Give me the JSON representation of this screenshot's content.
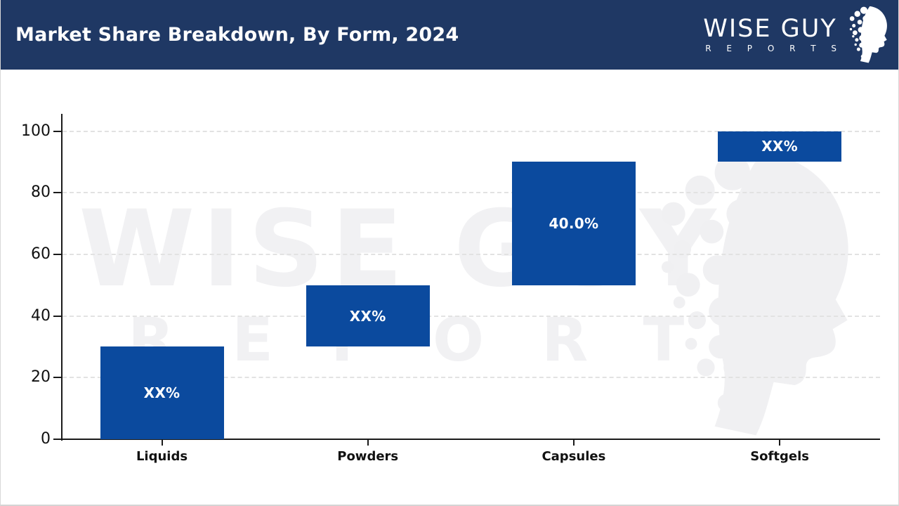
{
  "header": {
    "title": "Market Share Breakdown, By Form, 2024",
    "logo": {
      "line1": "WISE GUY",
      "line2": "R E P O R T S"
    }
  },
  "watermark": {
    "line1": "WISE GUY",
    "line2": "REPORTS"
  },
  "colors": {
    "header_bg": "#1F3864",
    "bar": "#0B4A9E",
    "grid": "#E2E2E2",
    "axis": "#1A1A1A",
    "watermark": "#F1F1F3"
  },
  "chart_data": {
    "type": "bar",
    "subtype": "waterfall",
    "title": "Market Share Breakdown, By Form, 2024",
    "categories": [
      "Liquids",
      "Powders",
      "Capsules",
      "Softgels"
    ],
    "segments": [
      {
        "category": "Liquids",
        "start": 0,
        "end": 30,
        "label": "XX%"
      },
      {
        "category": "Powders",
        "start": 30,
        "end": 50,
        "label": "XX%"
      },
      {
        "category": "Capsules",
        "start": 50,
        "end": 90,
        "label": "40.0%"
      },
      {
        "category": "Softgels",
        "start": 90,
        "end": 100,
        "label": "XX%"
      }
    ],
    "yticks": [
      0,
      20,
      40,
      60,
      80,
      100
    ],
    "ylim": [
      0,
      105
    ],
    "xlabel": "",
    "ylabel": "",
    "grid": "horizontal-dashed",
    "legend": "none"
  }
}
